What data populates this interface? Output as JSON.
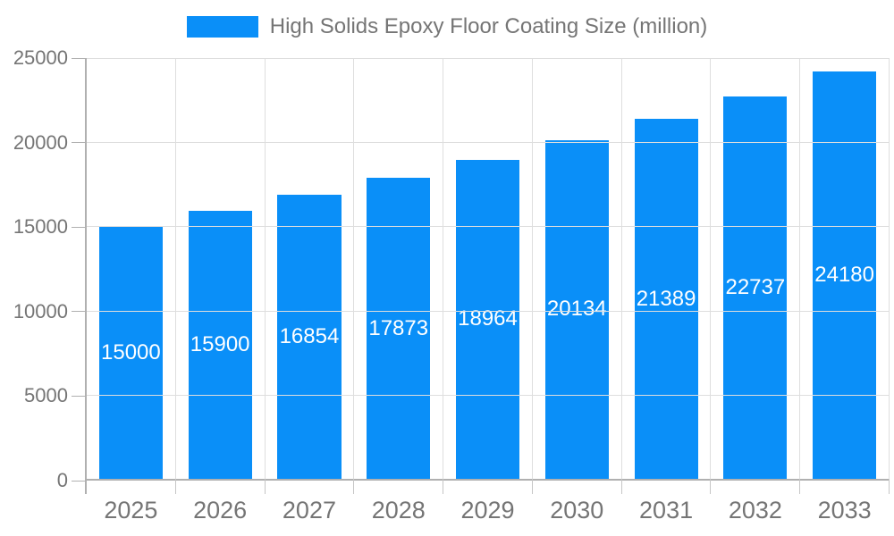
{
  "chart_data": {
    "type": "bar",
    "title": "High Solids Epoxy Floor Coating Size (million)",
    "categories": [
      "2025",
      "2026",
      "2027",
      "2028",
      "2029",
      "2030",
      "2031",
      "2032",
      "2033"
    ],
    "values": [
      15000,
      15900,
      16854,
      17873,
      18964,
      20134,
      21389,
      22737,
      24180
    ],
    "xlabel": "",
    "ylabel": "",
    "ylim": [
      0,
      25000
    ],
    "yticks": [
      0,
      5000,
      10000,
      15000,
      20000,
      25000
    ],
    "grid": true,
    "legend_position": "top",
    "bar_color": "#0a8ff8",
    "bar_label_color": "#ffffff",
    "grid_color": "#dedede",
    "axis_color": "#b0b0b0",
    "tick_text_color": "#757575"
  }
}
